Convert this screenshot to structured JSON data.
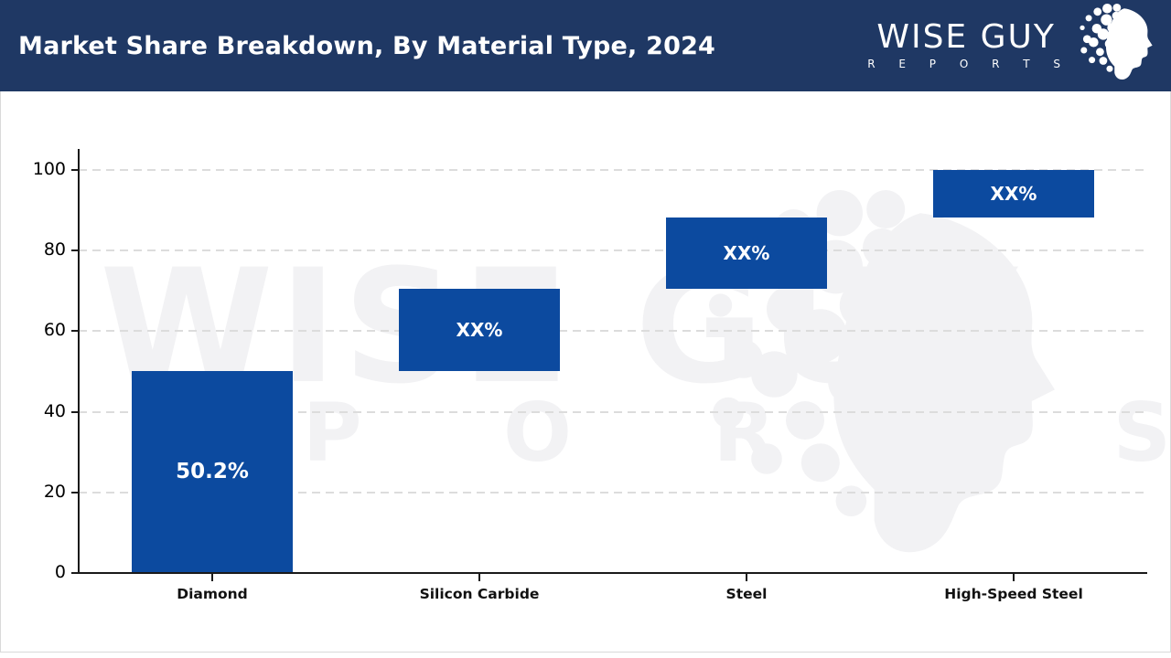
{
  "header": {
    "title": "Market Share Breakdown, By Material Type, 2024",
    "bg_color": "#1f3864",
    "logo": {
      "line1": "WISE GUY",
      "line2": "R E P O R T S"
    }
  },
  "watermark": {
    "line1": "WISE GUY",
    "line2": "P O R T S"
  },
  "chart_data": {
    "type": "bar",
    "subtype": "waterfall",
    "title": "Market Share Breakdown, By Material Type, 2024",
    "xlabel": "",
    "ylabel": "",
    "ylim": [
      0,
      100
    ],
    "yticks": [
      0,
      20,
      40,
      60,
      80,
      100
    ],
    "grid": "horizontal-dashed",
    "legend": "none",
    "bar_color": "#0c4a9f",
    "categories": [
      "Diamond",
      "Silicon Carbide",
      "Steel",
      "High-Speed Steel"
    ],
    "segments": [
      {
        "category": "Diamond",
        "start": 0,
        "end": 50.2,
        "label": "50.2%"
      },
      {
        "category": "Silicon Carbide",
        "start": 50.2,
        "end": 70.5,
        "label": "XX%"
      },
      {
        "category": "Steel",
        "start": 70.5,
        "end": 88.2,
        "label": "XX%"
      },
      {
        "category": "High-Speed Steel",
        "start": 88.2,
        "end": 100,
        "label": "XX%"
      }
    ]
  }
}
